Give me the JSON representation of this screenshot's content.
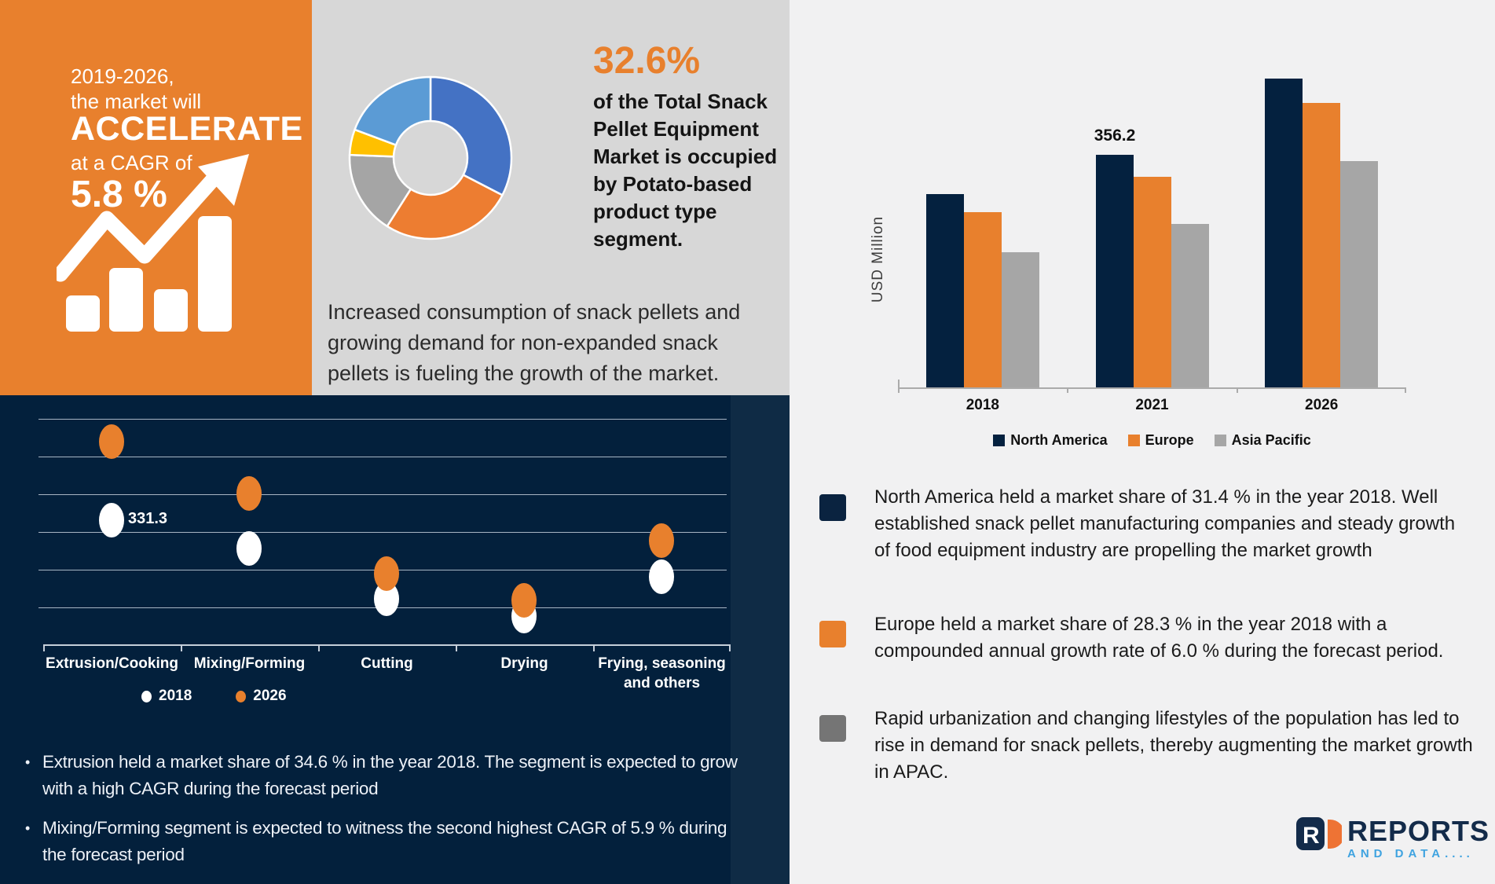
{
  "accelerate_panel": {
    "period": "2019-2026,",
    "intro": "the market will",
    "headline": "ACCELERATE",
    "cagr_label": "at a CAGR of",
    "cagr_value": "5.8 %"
  },
  "product_panel": {
    "stat": "32.6%",
    "description": "of the Total Snack Pellet Equipment Market is occupied by Potato-based product type segment.",
    "note": "Increased consumption of snack pellets and growing demand for non-expanded snack pellets is fueling the growth of the market.",
    "accent_color": "#E8802D"
  },
  "chart_data": [
    {
      "id": "product-type-donut",
      "type": "pie",
      "donut": true,
      "segments": [
        {
          "label": "Potato-based",
          "value": 32.6,
          "color": "#4472C4"
        },
        {
          "label": "",
          "value": 26.4,
          "color": "#ED7D31"
        },
        {
          "label": "",
          "value": 16.6,
          "color": "#A5A5A5"
        },
        {
          "label": "",
          "value": 5.1,
          "color": "#FFC000"
        },
        {
          "label": "",
          "value": 19.3,
          "color": "#5B9BD5"
        }
      ]
    },
    {
      "id": "regional-market-bar-chart",
      "type": "bar",
      "categories": [
        "2018",
        "2021",
        "2026"
      ],
      "series": [
        {
          "name": "North America",
          "color": "#04213F",
          "values": [
            296,
            356.2,
            473
          ]
        },
        {
          "name": "Europe",
          "color": "#E8802D",
          "values": [
            268,
            322,
            436
          ]
        },
        {
          "name": "Asia Pacific",
          "color": "#A6A6A6",
          "values": [
            207,
            250,
            347
          ]
        }
      ],
      "ylabel": "USD Million",
      "ylim": [
        0,
        485
      ],
      "grid": false,
      "legend_position": "bottom",
      "data_labels": [
        {
          "series": "North America",
          "category": "2021",
          "text": "356.2"
        }
      ]
    },
    {
      "id": "process-segment-dot-plot",
      "type": "scatter",
      "categories": [
        "Extrusion/Cooking",
        "Mixing/Forming",
        "Cutting",
        "Drying",
        "Frying, seasoning and others"
      ],
      "series": [
        {
          "name": "2018",
          "color": "#FFFFFF",
          "values": [
            331.3,
            294,
            227,
            204,
            256
          ]
        },
        {
          "name": "2026",
          "color": "#E8802D",
          "values": [
            435,
            367,
            260,
            225,
            304
          ]
        }
      ],
      "grid": true,
      "legend_position": "bottom",
      "data_labels": [
        {
          "series": "2018",
          "category": "Extrusion/Cooking",
          "text": "331.3"
        }
      ]
    }
  ],
  "regional_insights": [
    {
      "color": "#0A2340",
      "text": "North America held a market share of 31.4 % in the year 2018. Well established snack pellet manufacturing companies and steady growth of food equipment industry are propelling the market growth"
    },
    {
      "color": "#E8802D",
      "text": "Europe held a market share of 28.3 % in the year 2018 with a compounded annual growth rate of 6.0 % during the forecast period."
    },
    {
      "color": "#757575",
      "text": "Rapid urbanization and changing lifestyles of the population has led to rise in demand for snack pellets, thereby augmenting the market growth in APAC."
    }
  ],
  "process_insights": [
    "Extrusion held a market share of 34.6 % in the year 2018. The segment is expected to grow with a high CAGR during the forecast period",
    "Mixing/Forming segment is expected to witness the second highest CAGR of 5.9 % during the forecast period"
  ],
  "logo": {
    "mark": "R",
    "name": "REPORTS",
    "tagline": "AND DATA",
    "dots": "...."
  }
}
